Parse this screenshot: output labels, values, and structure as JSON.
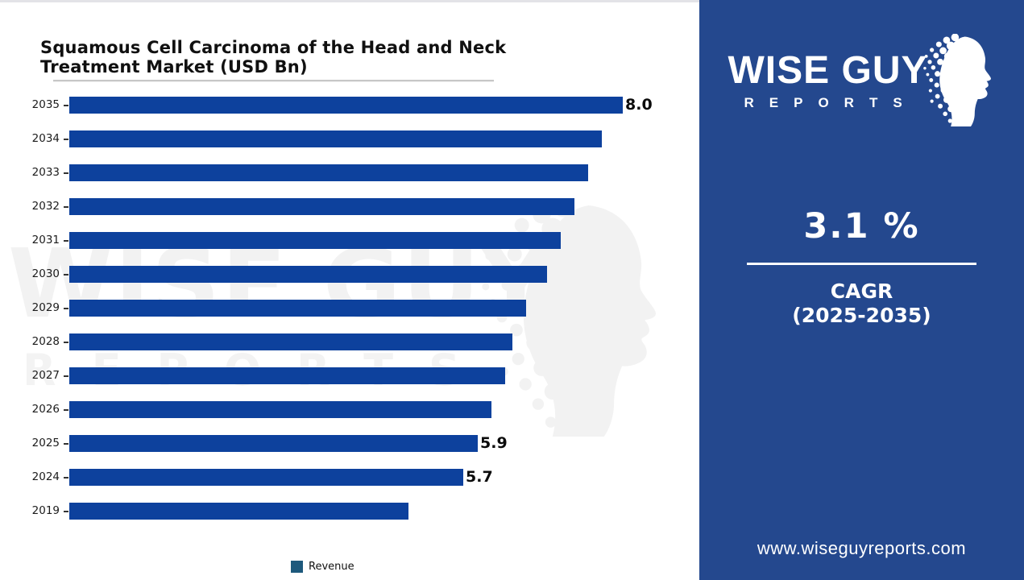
{
  "chart_data": {
    "type": "bar",
    "orientation": "horizontal",
    "title": "Squamous Cell Carcinoma of the Head and Neck Treatment Market (USD Bn)",
    "xlabel": "",
    "ylabel": "",
    "unit": "USD Bn",
    "xlim": [
      0,
      8.0
    ],
    "grid": false,
    "legend_position": "bottom-center",
    "legend": [
      {
        "label": "Revenue",
        "color": "#1d597c"
      }
    ],
    "bar_color": "#0d419d",
    "categories": [
      "2035",
      "2034",
      "2033",
      "2032",
      "2031",
      "2030",
      "2029",
      "2028",
      "2027",
      "2026",
      "2025",
      "2024",
      "2019"
    ],
    "values": [
      8.0,
      7.7,
      7.5,
      7.3,
      7.1,
      6.9,
      6.6,
      6.4,
      6.3,
      6.1,
      5.9,
      5.7,
      4.9
    ],
    "value_labels": [
      "8.0",
      "",
      "",
      "",
      "",
      "",
      "",
      "",
      "",
      "",
      "5.9",
      "5.7",
      ""
    ]
  },
  "brand_panel": {
    "background_color": "#24488e",
    "logo_title": "WISE GUY",
    "logo_subtitle": "REPORTS",
    "cagr_value": "3.1 %",
    "cagr_label": "CAGR",
    "cagr_period": "(2025-2035)",
    "website": "www.wiseguyreports.com"
  },
  "watermark": {
    "line1": "WISE GUY",
    "line2": "REPORTS"
  }
}
